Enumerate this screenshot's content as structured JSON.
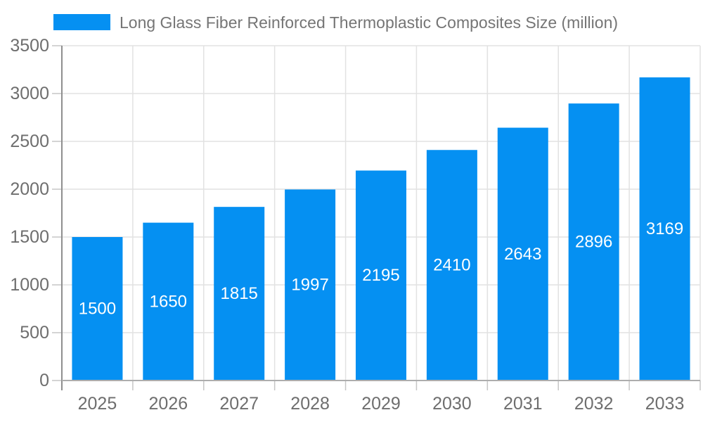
{
  "legend": {
    "label": "Long Glass Fiber Reinforced Thermoplastic Composites Size (million)"
  },
  "colors": {
    "bar": "#0590F2",
    "legend_text": "#757575",
    "axis_text": "#6E6E6E",
    "grid_line": "#E2E2E2",
    "tick_line": "#C6C6C6",
    "y_axis_line": "#8F8F8F",
    "baseline": "#ADADAD",
    "value_label": "#FFFFFF",
    "background": "#FFFFFF"
  },
  "chart_data": {
    "type": "bar",
    "title": "Long Glass Fiber Reinforced Thermoplastic Composites Size (million)",
    "categories": [
      "2025",
      "2026",
      "2027",
      "2028",
      "2029",
      "2030",
      "2031",
      "2032",
      "2033"
    ],
    "values": [
      1500,
      1650,
      1815,
      1997,
      2195,
      2410,
      2643,
      2896,
      3169
    ],
    "series_name": "Long Glass Fiber Reinforced Thermoplastic Composites Size (million)",
    "xlabel": "",
    "ylabel": "",
    "ylim": [
      0,
      3500
    ],
    "yticks": [
      0,
      500,
      1000,
      1500,
      2000,
      2500,
      3000,
      3500
    ],
    "grid": true,
    "legend_position": "top",
    "value_labels": "inside-center"
  }
}
